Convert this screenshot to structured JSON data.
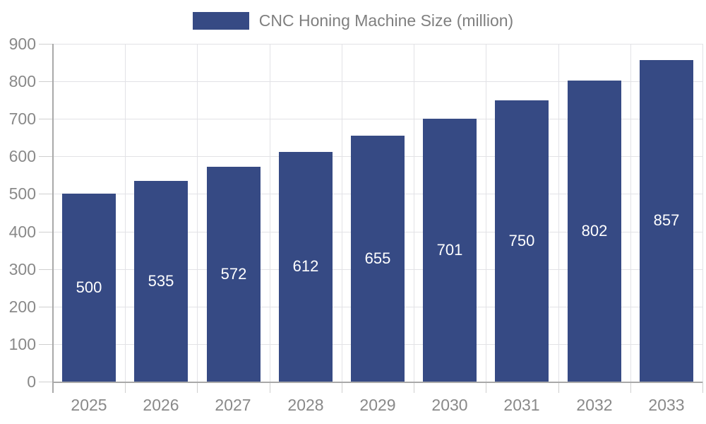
{
  "legend": {
    "label": "CNC Honing Machine Size (million)"
  },
  "colors": {
    "bar": "#364a84",
    "grid": "#e2e2e6",
    "axis": "#a9a9a9",
    "tick": "#cfcfcf",
    "axis_text": "#898989",
    "legend_text": "#7f7f7f",
    "value_label": "#ffffff",
    "background": "#ffffff"
  },
  "chart_data": {
    "type": "bar",
    "title": "CNC Honing Machine Size (million)",
    "categories": [
      "2025",
      "2026",
      "2027",
      "2028",
      "2029",
      "2030",
      "2031",
      "2032",
      "2033"
    ],
    "values": [
      500,
      535,
      572,
      612,
      655,
      701,
      750,
      802,
      857
    ],
    "xlabel": "",
    "ylabel": "",
    "ylim": [
      0,
      900
    ],
    "ytick_interval": 100,
    "grid": true,
    "legend_position": "top",
    "value_label_position": "inside-center"
  }
}
